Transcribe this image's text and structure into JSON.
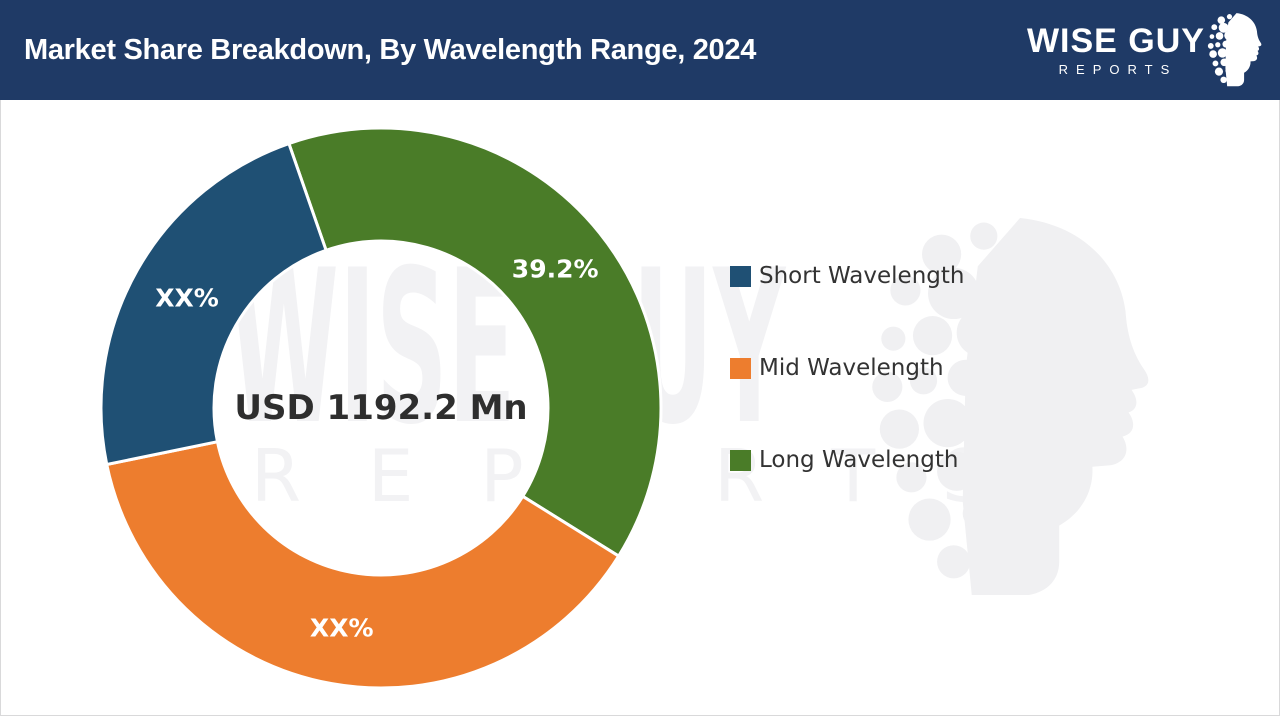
{
  "header": {
    "title": "Market Share Breakdown, By Wavelength Range, 2024",
    "logo": {
      "line1": "WISE GUY",
      "line2": "REPORTS"
    }
  },
  "watermark": {
    "line1": "WISE GUY",
    "line2": "R E P O R T S"
  },
  "chart_data": {
    "type": "pie",
    "subtype": "donut",
    "title": "Market Share Breakdown, By Wavelength Range, 2024",
    "center_label": "USD 1192.2 Mn",
    "start_angle_deg": -19.2,
    "direction": "clockwise",
    "slices": [
      {
        "label": "Long Wavelength",
        "value": 39.2,
        "display": "39.2%",
        "color": "#4a7c28"
      },
      {
        "label": "Mid Wavelength",
        "value": 37.9,
        "display": "XX%",
        "color": "#ed7d2e"
      },
      {
        "label": "Short Wavelength",
        "value": 22.9,
        "display": "XX%",
        "color": "#1f5074"
      }
    ],
    "legend": [
      {
        "label": "Short Wavelength",
        "color": "#1f5074"
      },
      {
        "label": "Mid Wavelength",
        "color": "#ed7d2e"
      },
      {
        "label": "Long Wavelength",
        "color": "#4a7c28"
      }
    ],
    "legend_position": "right",
    "colors": {
      "header_bg": "#1f3a66",
      "center_text": "#2e2e2e",
      "watermark": "#f2f2f4"
    }
  }
}
